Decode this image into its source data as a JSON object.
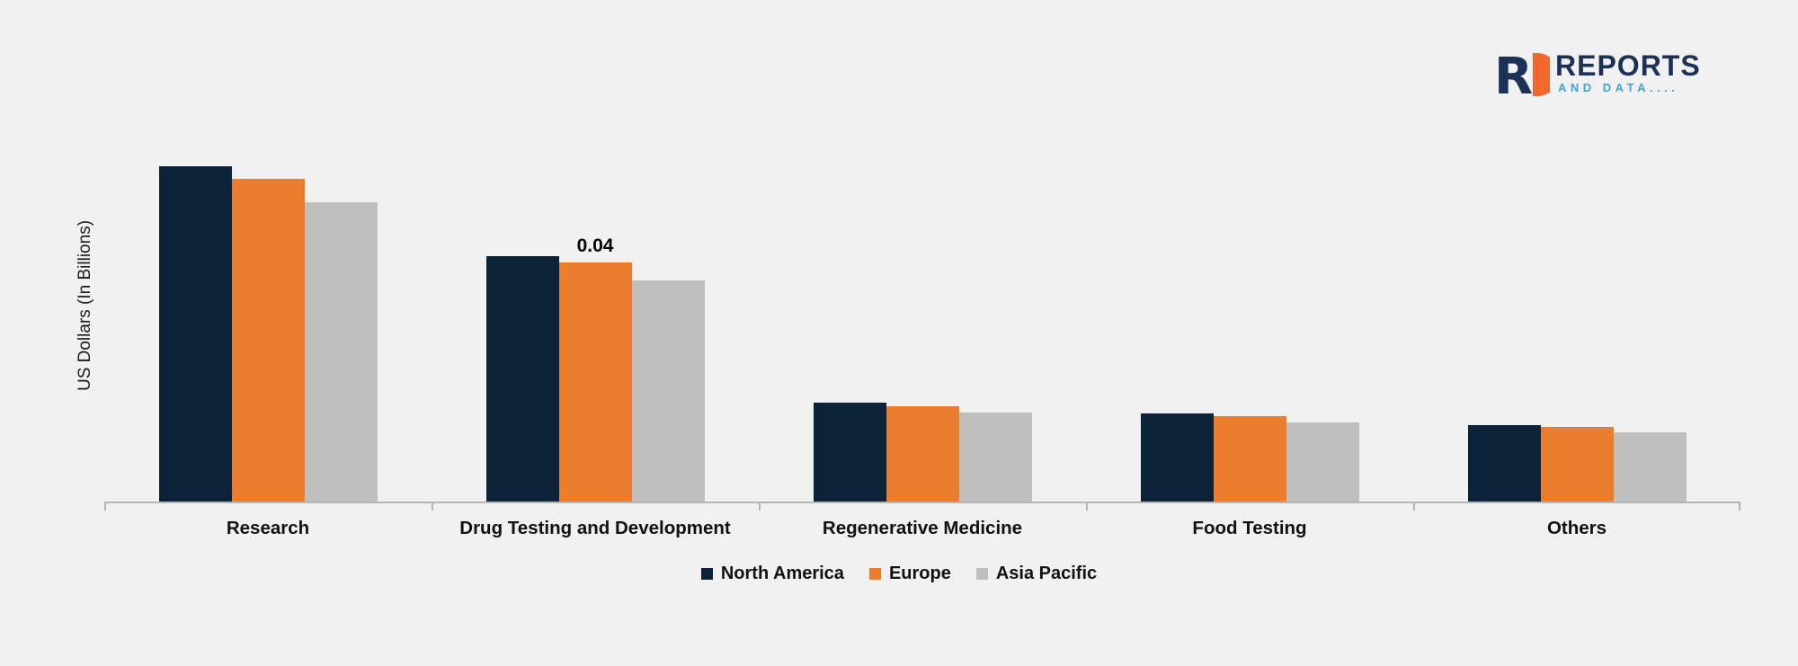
{
  "page": {
    "background": "#f1f1f2"
  },
  "logo": {
    "brand_top": "REPORTS",
    "brand_bottom": "AND DATA....",
    "mark_letter": "R",
    "colors": {
      "navy": "#1b3156",
      "blue": "#3ea4dc",
      "orange": "#f2672e"
    }
  },
  "chart_data": {
    "type": "bar",
    "title": "",
    "xlabel": "",
    "ylabel": "US Dollars (In Billions)",
    "categories": [
      "Research",
      "Drug Testing and Development",
      "Regenerative Medicine",
      "Food Testing",
      "Others"
    ],
    "series": [
      {
        "name": "North America",
        "color": "#0b2239",
        "values": [
          0.056,
          0.041,
          0.0165,
          0.0147,
          0.0128
        ]
      },
      {
        "name": "Europe",
        "color": "#ec7d2f",
        "values": [
          0.054,
          0.04,
          0.016,
          0.0142,
          0.0125
        ]
      },
      {
        "name": "Asia Pacific",
        "color": "#bfbfbf",
        "values": [
          0.05,
          0.037,
          0.0148,
          0.0132,
          0.0115
        ]
      }
    ],
    "data_labels": [
      {
        "series": "Europe",
        "category": "Drug Testing and Development",
        "text": "0.04"
      }
    ],
    "ylim": [
      0,
      0.0616
    ],
    "grid": false,
    "axis_color": "#b5b5b8",
    "legend_position": "bottom"
  }
}
